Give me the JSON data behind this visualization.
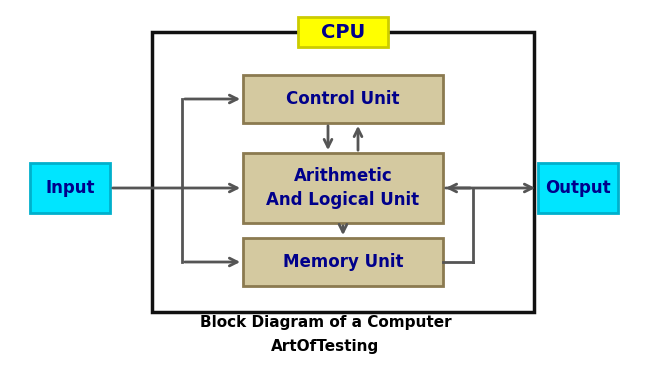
{
  "title1": "Block Diagram of a Computer",
  "title2": "ArtOfTesting",
  "cpu_label": "CPU",
  "control_label": "Control Unit",
  "alu_label": "Arithmetic\nAnd Logical Unit",
  "memory_label": "Memory Unit",
  "input_label": "Input",
  "output_label": "Output",
  "bg_color": "#ffffff",
  "cpu_fill": "#ffff00",
  "cpu_edge": "#cccc00",
  "io_fill": "#00e5ff",
  "io_edge": "#00b0cc",
  "inner_fill": "#d4c9a0",
  "inner_edge": "#8b7a50",
  "text_color": "#00008b",
  "cpu_text_color": "#00008b",
  "arrow_color": "#555555",
  "outer_box_color": "#111111"
}
